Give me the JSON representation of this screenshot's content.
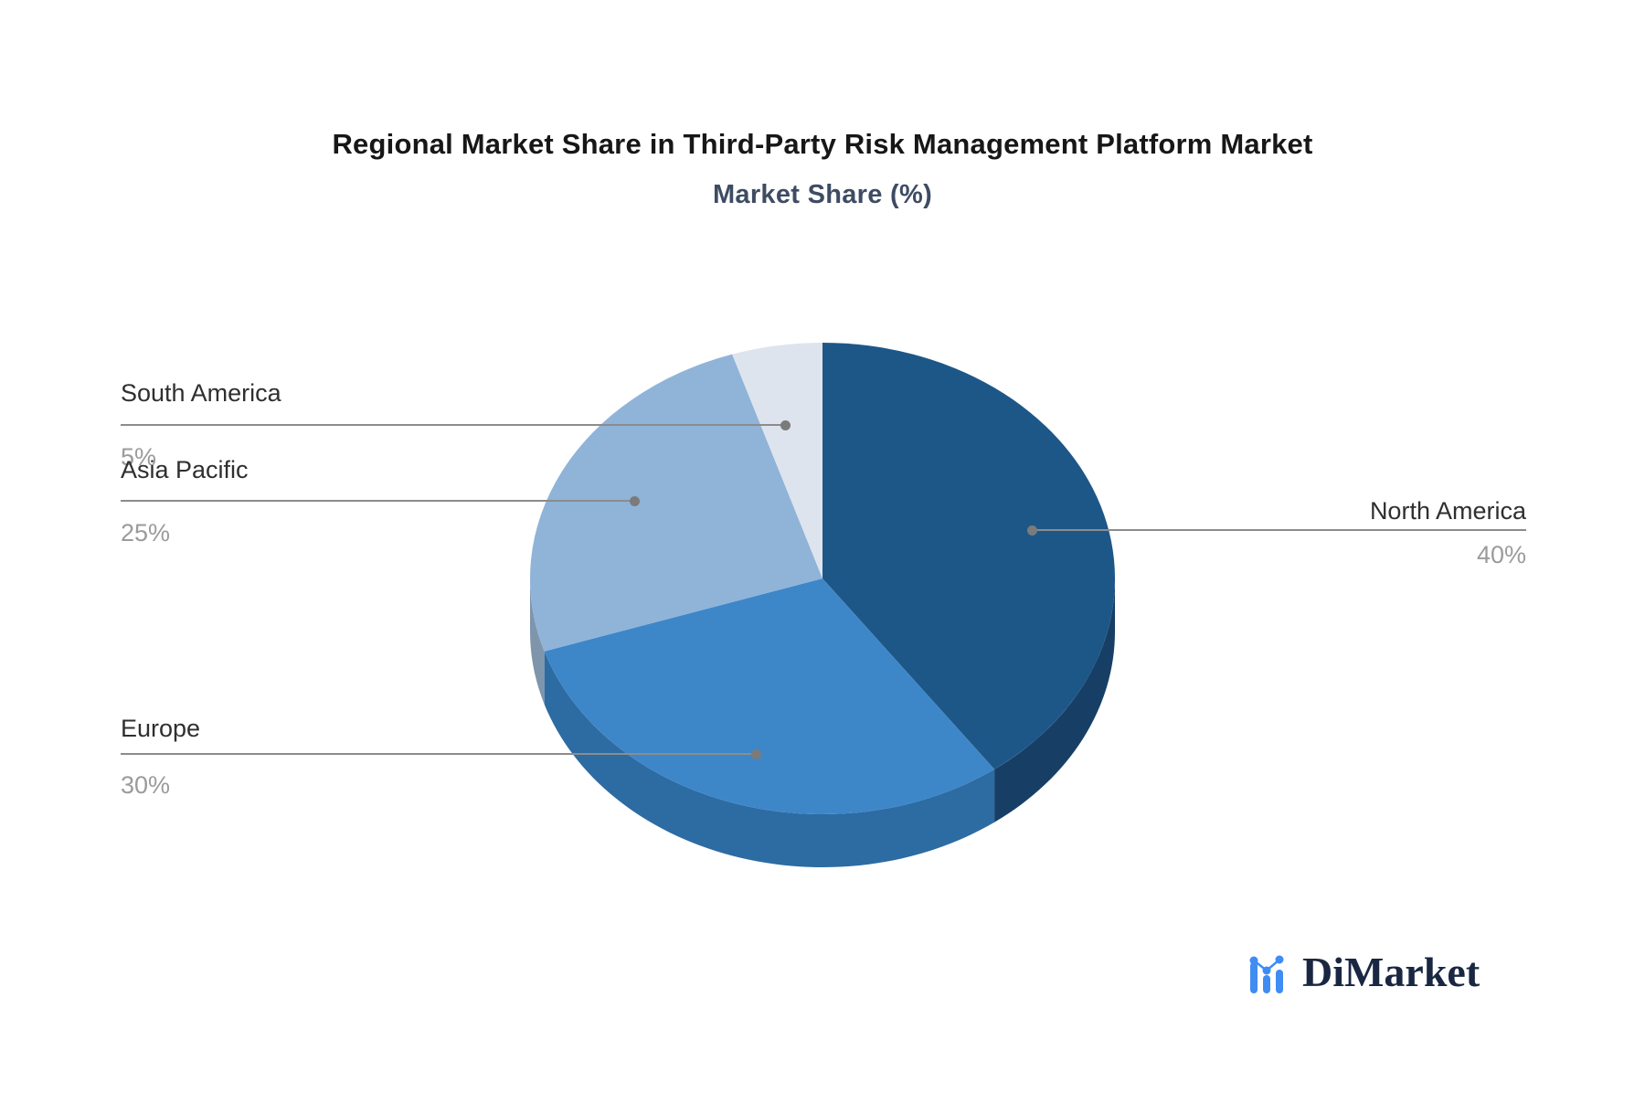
{
  "chart_data": {
    "type": "pie",
    "style": "3d",
    "title": "Regional Market Share in Third-Party Risk Management Platform Market",
    "subtitle": "Market Share (%)",
    "direction": "clockwise",
    "start_angle": "top",
    "legend_position": "none",
    "slices": [
      {
        "label": "North America",
        "value": 40,
        "pct_label": "40%",
        "color": "#1d5788",
        "side_color": "#173f66"
      },
      {
        "label": "Europe",
        "value": 30,
        "pct_label": "30%",
        "color": "#3d87c9",
        "side_color": "#2d6ba3"
      },
      {
        "label": "Asia Pacific",
        "value": 25,
        "pct_label": "25%",
        "color": "#90b3d8",
        "side_color": "#7e95ac"
      },
      {
        "label": "South America",
        "value": 5,
        "pct_label": "5%",
        "color": "#dde4ee",
        "side_color": "#c6cfdd"
      }
    ],
    "leader_line_color": "#8c8c8c",
    "label_text_color": "#2f2f2f",
    "pct_text_color": "#9b9b9b"
  },
  "branding": {
    "logo_text": "DiMarket",
    "logo_text_color": "#1a2742",
    "logo_icon": "bar-chart-with-trend-dots-icon",
    "logo_icon_color": "#3f8cf3"
  }
}
